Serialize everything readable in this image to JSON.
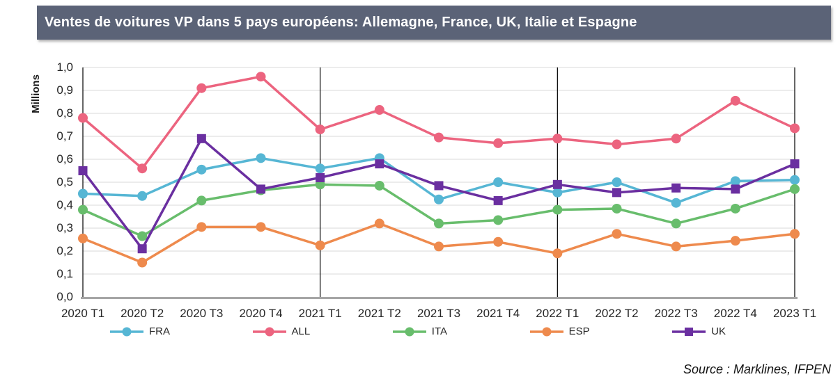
{
  "title": "Ventes de voitures VP dans 5 pays européens: Allemagne, France, UK, Italie et Espagne",
  "source": "Source : Marklines, IFPEN",
  "colors": {
    "header_bg": "#5b6377",
    "gridline": "#d9d9d9",
    "x_axis": "#a6a6a6",
    "y_axis": "#000000",
    "year_separator": "#000000"
  },
  "chart_data": {
    "type": "line",
    "title": "Ventes de voitures VP dans 5 pays européens: Allemagne, France, UK, Italie et Espagne",
    "xlabel": "",
    "ylabel": "Millions",
    "ylim": [
      0,
      1
    ],
    "grid": true,
    "legend_position": "bottom",
    "categories": [
      "2020 T1",
      "2020 T2",
      "2020 T3",
      "2020 T4",
      "2021 T1",
      "2021 T2",
      "2021 T3",
      "2021 T4",
      "2022 T1",
      "2022 T2",
      "2022 T3",
      "2022 T4",
      "2023 T1"
    ],
    "y_tick_values": [
      0,
      0.1,
      0.2,
      0.3,
      0.4,
      0.5,
      0.6,
      0.7,
      0.8,
      0.9,
      1.0
    ],
    "y_tick_labels": [
      "0,0",
      "0,1",
      "0,2",
      "0,3",
      "0,4",
      "0,5",
      "0,6",
      "0,7",
      "0,8",
      "0,9",
      "1,0"
    ],
    "year_separators": [
      "2021 T1",
      "2022 T1",
      "2023 T1"
    ],
    "series": [
      {
        "name": "FRA",
        "color": "#56b6d4",
        "marker": "circle",
        "values": [
          0.45,
          0.44,
          0.555,
          0.605,
          0.56,
          0.605,
          0.425,
          0.5,
          0.455,
          0.5,
          0.41,
          0.505,
          0.51
        ]
      },
      {
        "name": "ALL",
        "color": "#ec647f",
        "marker": "circle",
        "values": [
          0.78,
          0.56,
          0.91,
          0.96,
          0.73,
          0.815,
          0.695,
          0.67,
          0.69,
          0.665,
          0.69,
          0.855,
          0.735
        ]
      },
      {
        "name": "ITA",
        "color": "#68bd6c",
        "marker": "circle",
        "values": [
          0.38,
          0.265,
          0.42,
          0.465,
          0.49,
          0.485,
          0.32,
          0.335,
          0.38,
          0.385,
          0.32,
          0.385,
          0.47
        ]
      },
      {
        "name": "ESP",
        "color": "#ee8a4d",
        "marker": "circle",
        "values": [
          0.255,
          0.15,
          0.305,
          0.305,
          0.225,
          0.32,
          0.22,
          0.24,
          0.19,
          0.275,
          0.22,
          0.245,
          0.275
        ]
      },
      {
        "name": "UK",
        "color": "#6a2fa0",
        "marker": "square",
        "values": [
          0.55,
          0.21,
          0.69,
          0.47,
          0.52,
          0.58,
          0.485,
          0.42,
          0.49,
          0.455,
          0.475,
          0.47,
          0.58
        ]
      }
    ]
  }
}
